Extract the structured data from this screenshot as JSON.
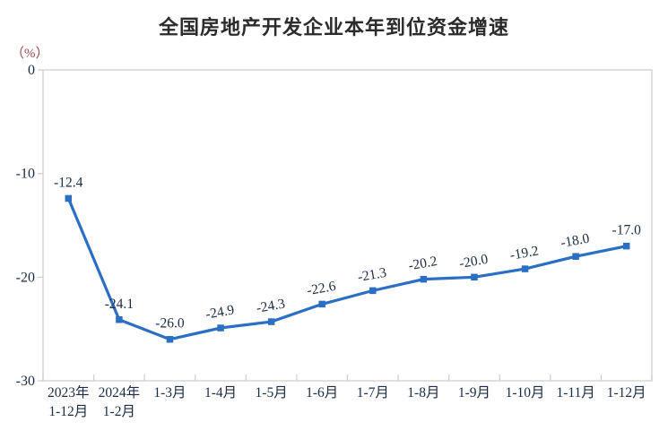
{
  "chart_data": {
    "type": "line",
    "title": "全国房地产开发企业本年到位资金增速",
    "ylabel": "（%）",
    "xlabel": "",
    "categories": [
      "2023年\n1-12月",
      "2024年\n1-2月",
      "1-3月",
      "1-4月",
      "1-5月",
      "1-6月",
      "1-7月",
      "1-8月",
      "1-9月",
      "1-10月",
      "1-11月",
      "1-12月"
    ],
    "values": [
      -12.4,
      -24.1,
      -26.0,
      -24.9,
      -24.3,
      -22.6,
      -21.3,
      -20.2,
      -20.0,
      -19.2,
      -18.0,
      -17.0
    ],
    "data_labels": [
      "-12.4",
      "-24.1",
      "-26.0",
      "-24.9",
      "-24.3",
      "-22.6",
      "-21.3",
      "-20.2",
      "-20.0",
      "-19.2",
      "-18.0",
      "-17.0"
    ],
    "ylim": [
      -30,
      0
    ],
    "yticks": [
      0,
      -10,
      -20,
      -30
    ],
    "ytick_labels": [
      "0",
      "-10",
      "-20",
      "-30"
    ],
    "grid": false,
    "legend": "none",
    "marker": "square",
    "colors": {
      "line": "#2A6FC4",
      "marker": "#2A6FC4",
      "data_label_text": "#1c2b42",
      "axis_line": "#cfcfcf",
      "tick_label_text": "#1c2b42",
      "unit_label": "#a04545",
      "title_text": "#2b2b2b",
      "background": "#ffffff"
    }
  }
}
